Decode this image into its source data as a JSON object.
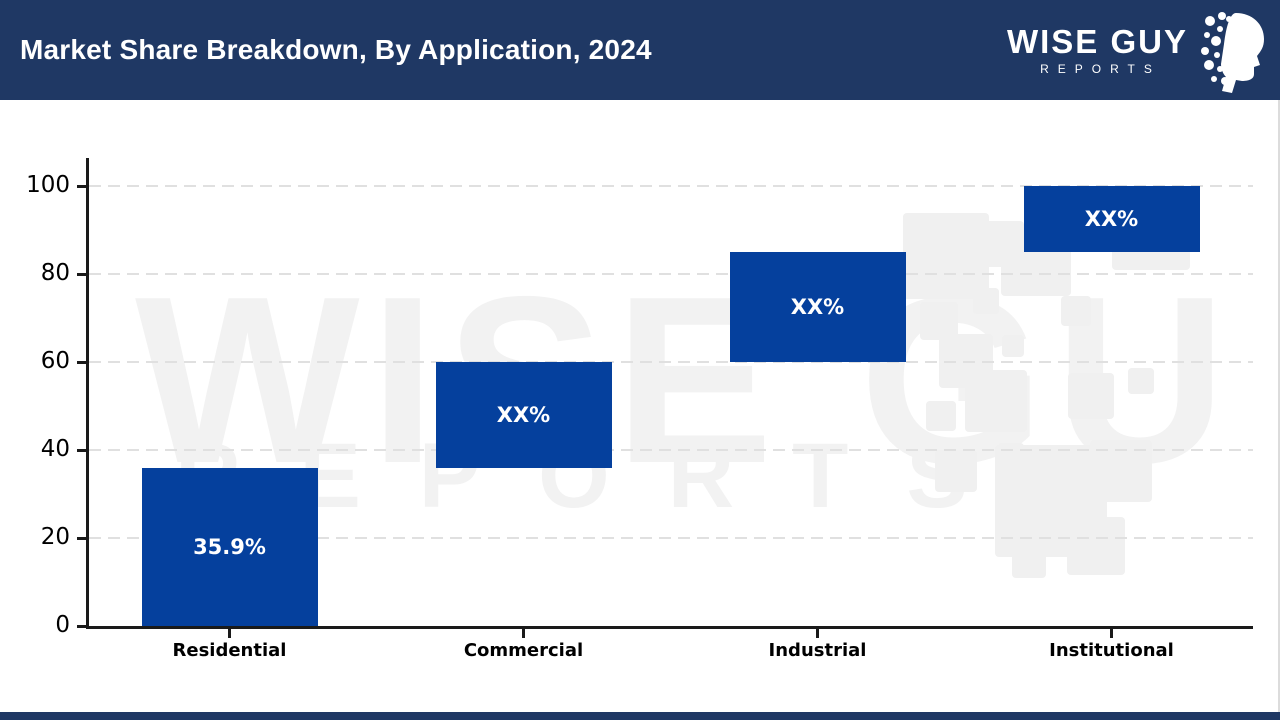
{
  "header": {
    "title": "Market Share Breakdown, By Application, 2024",
    "logo_line1": "WISE GUY",
    "logo_line2": "REPORTS"
  },
  "watermark": {
    "line1": "WISE GU",
    "line2": "REPORTS"
  },
  "colors": {
    "header_bg": "#1f3864",
    "footer_bg": "#1f3864",
    "bar_fill": "#05409d",
    "bar_label_text": "#ffffff",
    "gridline": "#e0e0e0",
    "axis": "#1a1a1a",
    "watermark": "#f1f1f1"
  },
  "chart_data": {
    "type": "bar",
    "subtype": "waterfall",
    "title": "Market Share Breakdown, By Application, 2024",
    "xlabel": "",
    "ylabel": "",
    "categories": [
      "Residential",
      "Commercial",
      "Industrial",
      "Institutional"
    ],
    "segments": [
      {
        "category": "Residential",
        "start": 0,
        "end": 35.9,
        "label": "35.9%"
      },
      {
        "category": "Commercial",
        "start": 35.9,
        "end": 60,
        "label": "XX%"
      },
      {
        "category": "Industrial",
        "start": 60,
        "end": 85,
        "label": "XX%"
      },
      {
        "category": "Institutional",
        "start": 85,
        "end": 100,
        "label": "XX%"
      }
    ],
    "yticks": [
      0,
      20,
      40,
      60,
      80,
      100
    ],
    "ylim": [
      0,
      106
    ],
    "grid": "dashed-horizontal",
    "legend": "none"
  }
}
